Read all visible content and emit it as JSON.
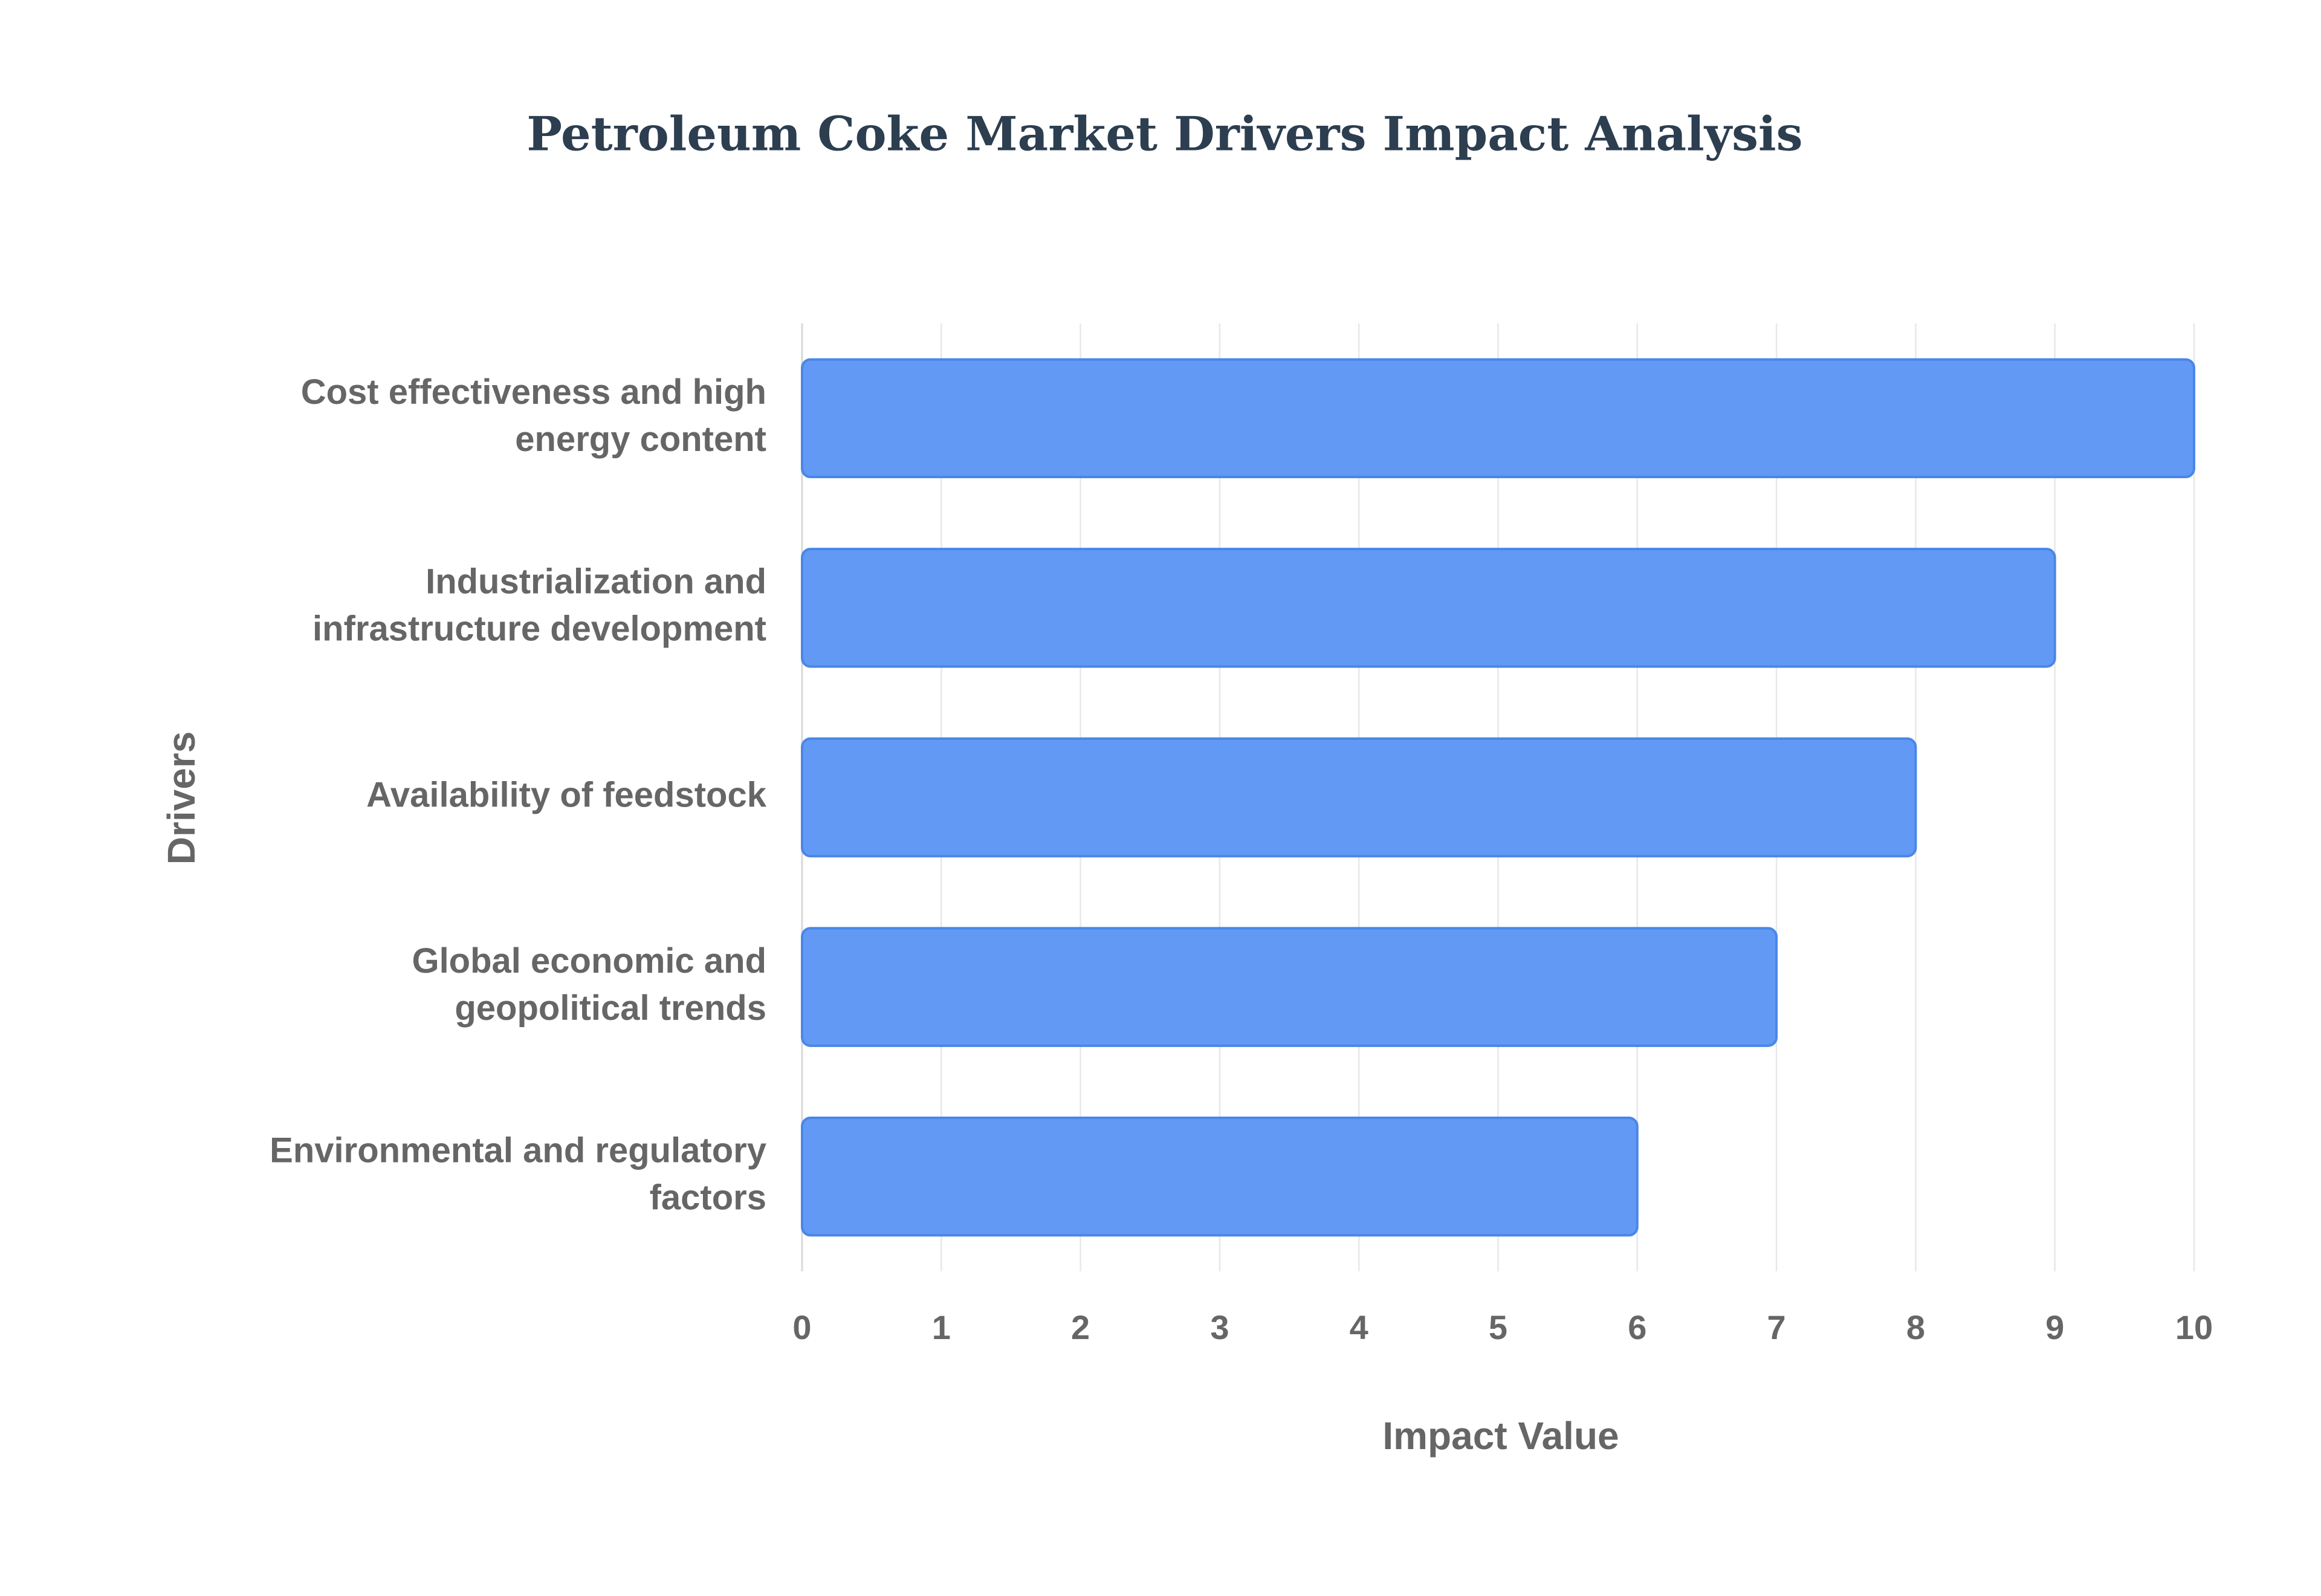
{
  "chart_data": {
    "type": "bar",
    "orientation": "horizontal",
    "title": "Petroleum Coke Market Drivers Impact Analysis",
    "xlabel": "Impact Value",
    "ylabel": "Drivers",
    "categories": [
      [
        "Cost effectiveness and high",
        "energy content"
      ],
      [
        "Industrialization and",
        "infrastructure development"
      ],
      [
        "Availability of feedstock"
      ],
      [
        "Global economic and",
        "geopolitical trends"
      ],
      [
        "Environmental and regulatory",
        "factors"
      ]
    ],
    "values": [
      10,
      9,
      8,
      7,
      6
    ],
    "xlim": [
      0,
      10
    ],
    "xticks": [
      0,
      1,
      2,
      3,
      4,
      5,
      6,
      7,
      8,
      9,
      10
    ],
    "grid": true,
    "bar_color": "#6199f4",
    "bar_edge_color": "#4a86e8"
  }
}
